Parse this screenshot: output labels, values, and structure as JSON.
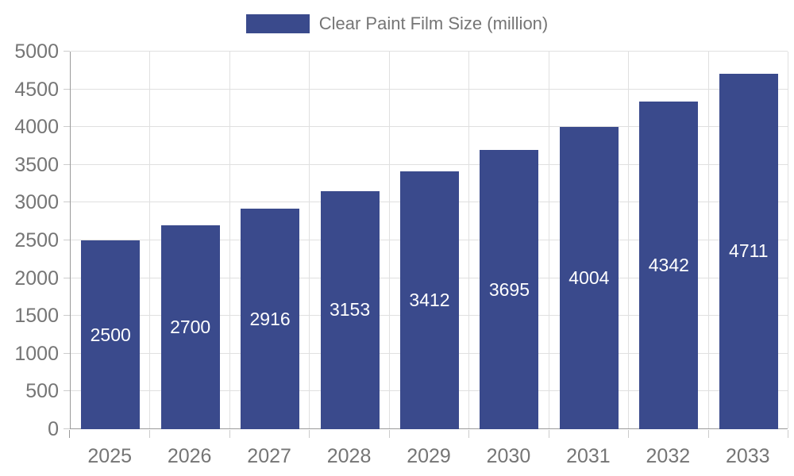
{
  "chart_data": {
    "type": "bar",
    "title": "",
    "legend": "Clear Paint Film Size (million)",
    "categories": [
      "2025",
      "2026",
      "2027",
      "2028",
      "2029",
      "2030",
      "2031",
      "2032",
      "2033"
    ],
    "values": [
      2500,
      2700,
      2916,
      3153,
      3412,
      3695,
      4004,
      4342,
      4711
    ],
    "xlabel": "",
    "ylabel": "",
    "ylim": [
      0,
      5000
    ],
    "yticks": [
      0,
      500,
      1000,
      1500,
      2000,
      2500,
      3000,
      3500,
      4000,
      4500,
      5000
    ],
    "grid": true,
    "legend_position": "top-center",
    "bar_label_position": "inside-center",
    "colors": {
      "bar": "#3A4A8C",
      "bar_label": "#ffffff",
      "axis_text": "#757575",
      "grid_line": "#e0e0e0",
      "axis_line": "#9a9a9a",
      "tick": "#cccccc",
      "background": "#ffffff"
    }
  }
}
